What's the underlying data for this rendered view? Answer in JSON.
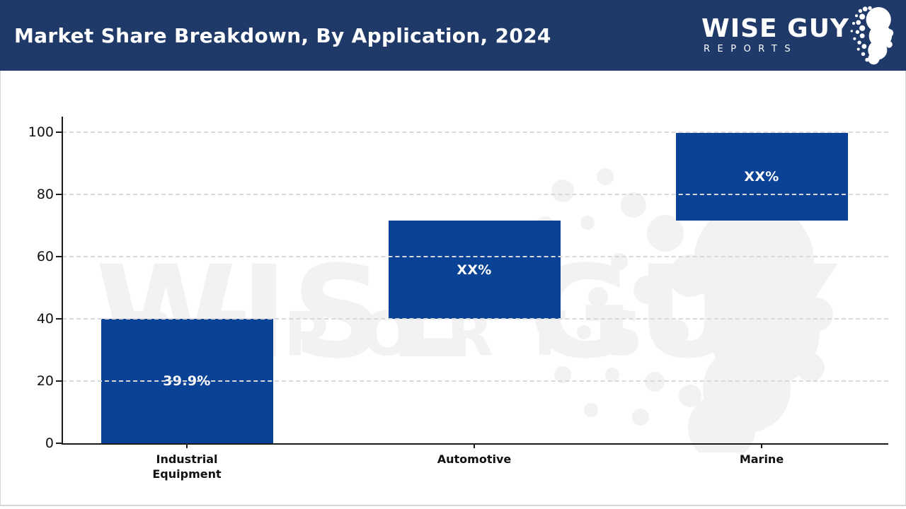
{
  "header": {
    "title": "Market Share Breakdown, By Application, 2024",
    "background_color": "#1f3a68",
    "logo": {
      "line1": "WISE GUY",
      "line2": "REPORTS"
    }
  },
  "watermark": {
    "line1": "WISE GUY",
    "line2": "REPORTS"
  },
  "chart_data": {
    "type": "bar",
    "subtype": "floating-segment-waterfall",
    "title": "Market Share Breakdown, By Application, 2024",
    "categories": [
      "Industrial\nEquipment",
      "Automotive",
      "Marine"
    ],
    "segments": [
      {
        "category": "Industrial\nEquipment",
        "start": 0,
        "end": 39.9,
        "label": "39.9%"
      },
      {
        "category": "Automotive",
        "start": 40,
        "end": 71.5,
        "label": "XX%"
      },
      {
        "category": "Marine",
        "start": 71.5,
        "end": 99.8,
        "label": "XX%"
      }
    ],
    "yticks": [
      0,
      20,
      40,
      60,
      80,
      100
    ],
    "ylim": [
      0,
      105
    ],
    "xlabel": "",
    "ylabel": "",
    "grid": "horizontal-dashed",
    "grid_above_bars": true,
    "legend": "none",
    "bar_color": "#0a4296",
    "bar_label_color": "#ffffff",
    "axis_color": "#1a1a1a",
    "grid_color": "#d9d9d9"
  }
}
